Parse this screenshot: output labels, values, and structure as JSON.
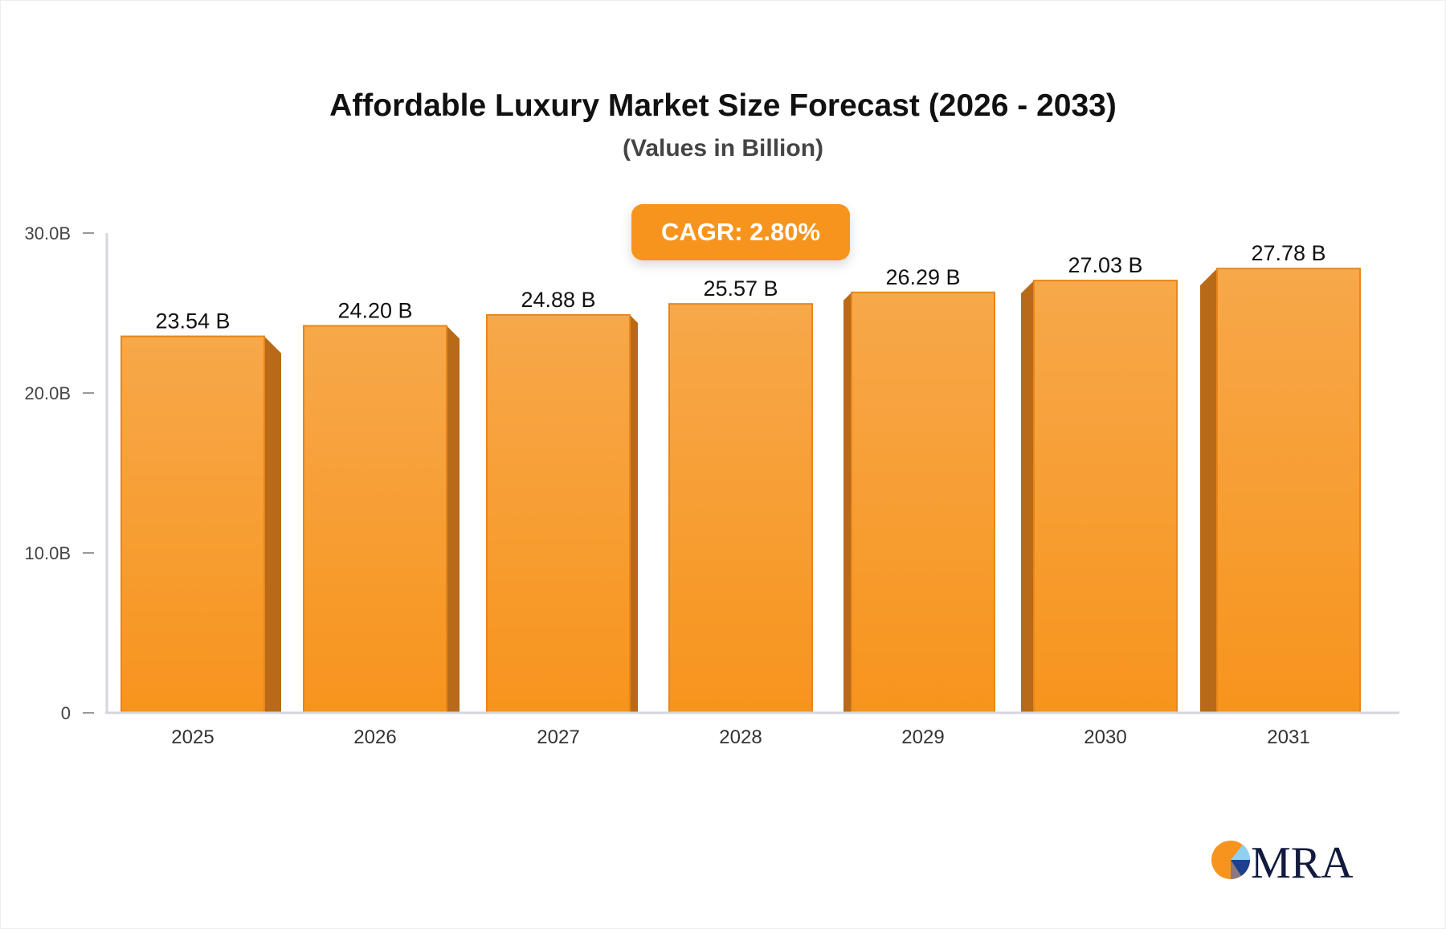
{
  "chart_data": {
    "type": "bar",
    "title": "Affordable Luxury Market Size Forecast (2026 - 2033)",
    "subtitle": "(Values in Billion)",
    "annotation": "CAGR: 2.80%",
    "categories": [
      "2025",
      "2026",
      "2027",
      "2028",
      "2029",
      "2030",
      "2031"
    ],
    "values": [
      23.54,
      24.2,
      24.88,
      25.57,
      26.29,
      27.03,
      27.78
    ],
    "data_labels": [
      "23.54 B",
      "24.20 B",
      "24.88 B",
      "25.57 B",
      "26.29 B",
      "27.03 B",
      "27.78 B"
    ],
    "yticks": [
      {
        "v": 0,
        "label": "0"
      },
      {
        "v": 10,
        "label": "10.0B"
      },
      {
        "v": 20,
        "label": "20.0B"
      },
      {
        "v": 30,
        "label": "30.0B"
      }
    ],
    "ylim": [
      0,
      30
    ],
    "xlabel": "",
    "ylabel": "",
    "grid": false,
    "colors": {
      "bar_top": "#f7a84a",
      "bar_bottom": "#f7941d",
      "bar_side": "#b86a18",
      "axis": "#d4d6dd"
    }
  },
  "logo": {
    "text": "MRA"
  }
}
